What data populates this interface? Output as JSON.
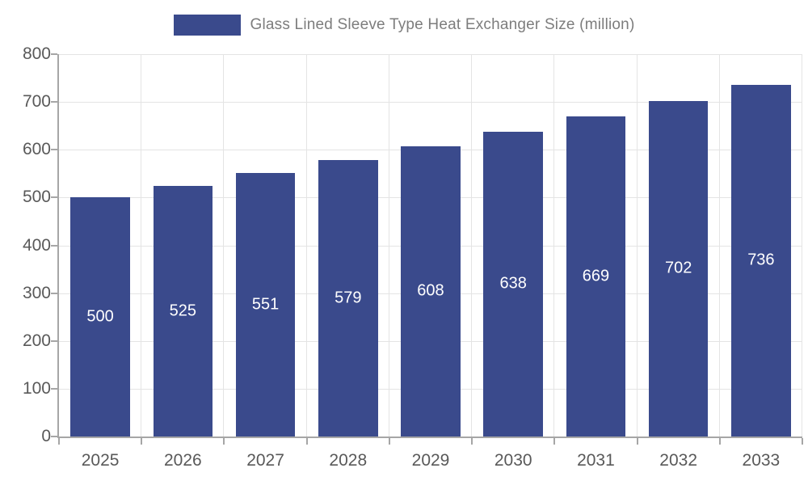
{
  "legend": {
    "label": "Glass Lined Sleeve Type Heat Exchanger Size (million)"
  },
  "colors": {
    "bar": "#3a4a8c",
    "grid": "#e4e4e4",
    "axis": "#a6a6a6",
    "tick_text": "#595959",
    "legend_text": "#7d7d7d",
    "bar_label_text": "#ffffff"
  },
  "chart_data": {
    "type": "bar",
    "title": "Glass Lined Sleeve Type Heat Exchanger Size (million)",
    "categories": [
      "2025",
      "2026",
      "2027",
      "2028",
      "2029",
      "2030",
      "2031",
      "2032",
      "2033"
    ],
    "values": [
      500,
      525,
      551,
      579,
      608,
      638,
      669,
      702,
      736
    ],
    "xlabel": "",
    "ylabel": "",
    "ylim": [
      0,
      800
    ],
    "ytick_step": 100,
    "yticks": [
      0,
      100,
      200,
      300,
      400,
      500,
      600,
      700,
      800
    ],
    "grid": true,
    "legend_position": "top-center",
    "bar_label_position": "inside-center",
    "bar_width_fraction": 0.72
  }
}
